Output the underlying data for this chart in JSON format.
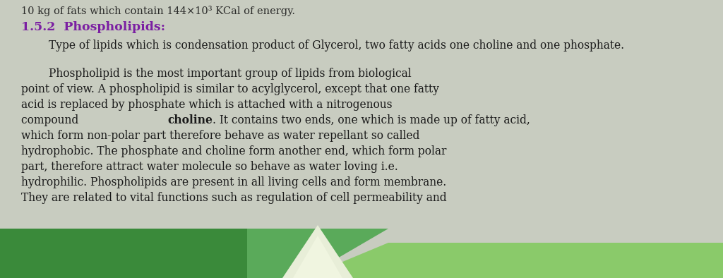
{
  "bg_color": "#c8ccc0",
  "heading": "1.5.2  Phospholipids:",
  "heading_color": "#7B1FA2",
  "top_text": "10 kg of fats which contain 144×10³ KCal of energy.",
  "para1_indent": "        Type of lipids which is condensation product of Glycerol, two fatty acids one choline and one phosphate.",
  "para2_line1": "        Phospholipid is the most important group of lipids from biological",
  "para2_line2": "point of view. A phospholipid is similar to acylglycerol, except that one fatty",
  "para2_line3": "acid is replaced by phosphate which is attached with a nitrogenous",
  "para2_line4_before": "compound ",
  "para2_line4_bold": "choline",
  "para2_line4_after": ". It contains two ends, one which is made up of fatty acid,",
  "para2_line5": "which form non-polar part therefore behave as water repellant so called",
  "para2_line6": "hydrophobic. The phosphate and choline form another end, which form polar",
  "para2_line7": "part, therefore attract water molecule so behave as water loving i.e.",
  "para2_line8": "hydrophilic. Phospholipids are present in all living cells and form membrane.",
  "para2_line9": "They are related to vital functions such as regulation of cell permeability and",
  "text_color": "#1a1a1a",
  "font_size_top": 10.5,
  "font_size_heading": 12.5,
  "font_size_body": 11.2,
  "green_dark": "#3a8a3a",
  "green_mid": "#5aaa5a",
  "green_light": "#8aca6a",
  "white": "#ffffff"
}
